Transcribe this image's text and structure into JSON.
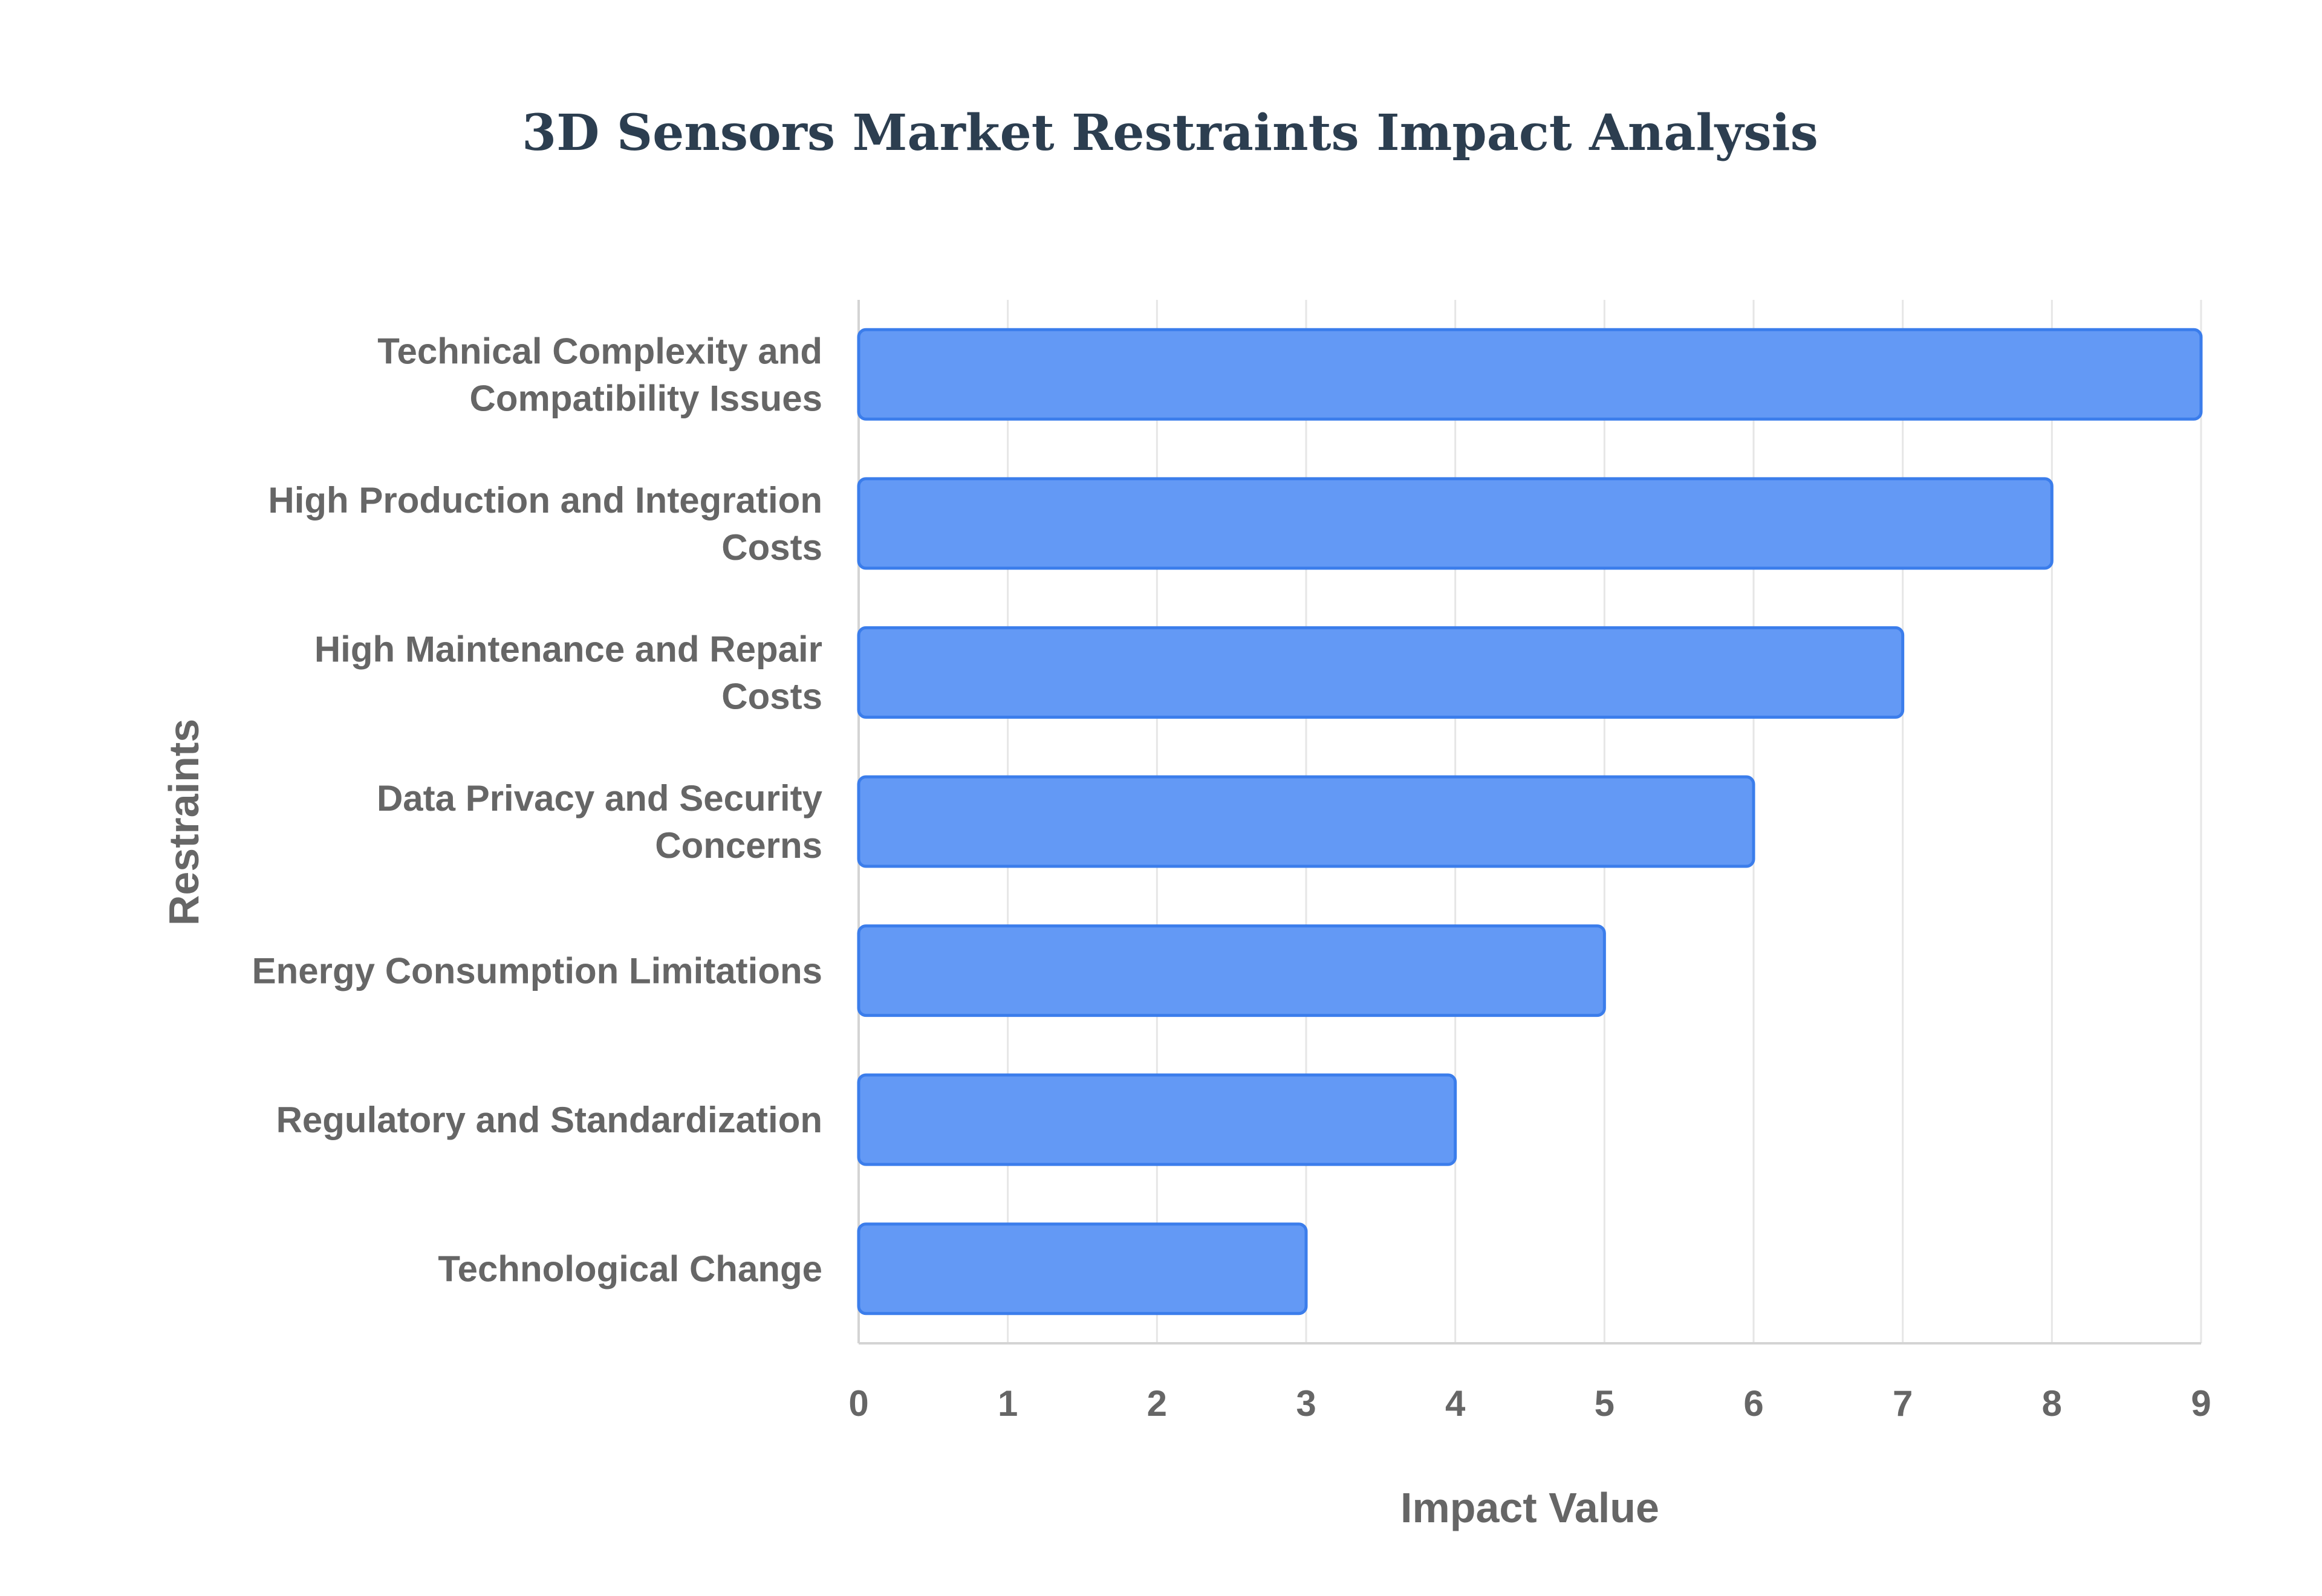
{
  "chart_data": {
    "type": "bar",
    "orientation": "horizontal",
    "title": "3D Sensors Market Restraints Impact Analysis",
    "xlabel": "Impact Value",
    "ylabel": "Restraints",
    "categories": [
      "Technical Complexity and Compatibility Issues",
      "High Production and Integration Costs",
      "High Maintenance and Repair Costs",
      "Data Privacy and Security Concerns",
      "Energy Consumption Limitations",
      "Regulatory and Standardization",
      "Technological Change"
    ],
    "values": [
      9,
      8,
      7,
      6,
      5,
      4,
      3
    ],
    "xlim": [
      0,
      9
    ],
    "xticks": [
      "0",
      "1",
      "2",
      "3",
      "4",
      "5",
      "6",
      "7",
      "8",
      "9"
    ],
    "grid": true,
    "legend": "none"
  },
  "colors": {
    "bar_fill": "#6399f5",
    "bar_stroke": "#3b7deb",
    "title": "#2c3e50",
    "text": "#666666",
    "grid": "#e6e6e6",
    "axis": "#d4d4d4"
  }
}
